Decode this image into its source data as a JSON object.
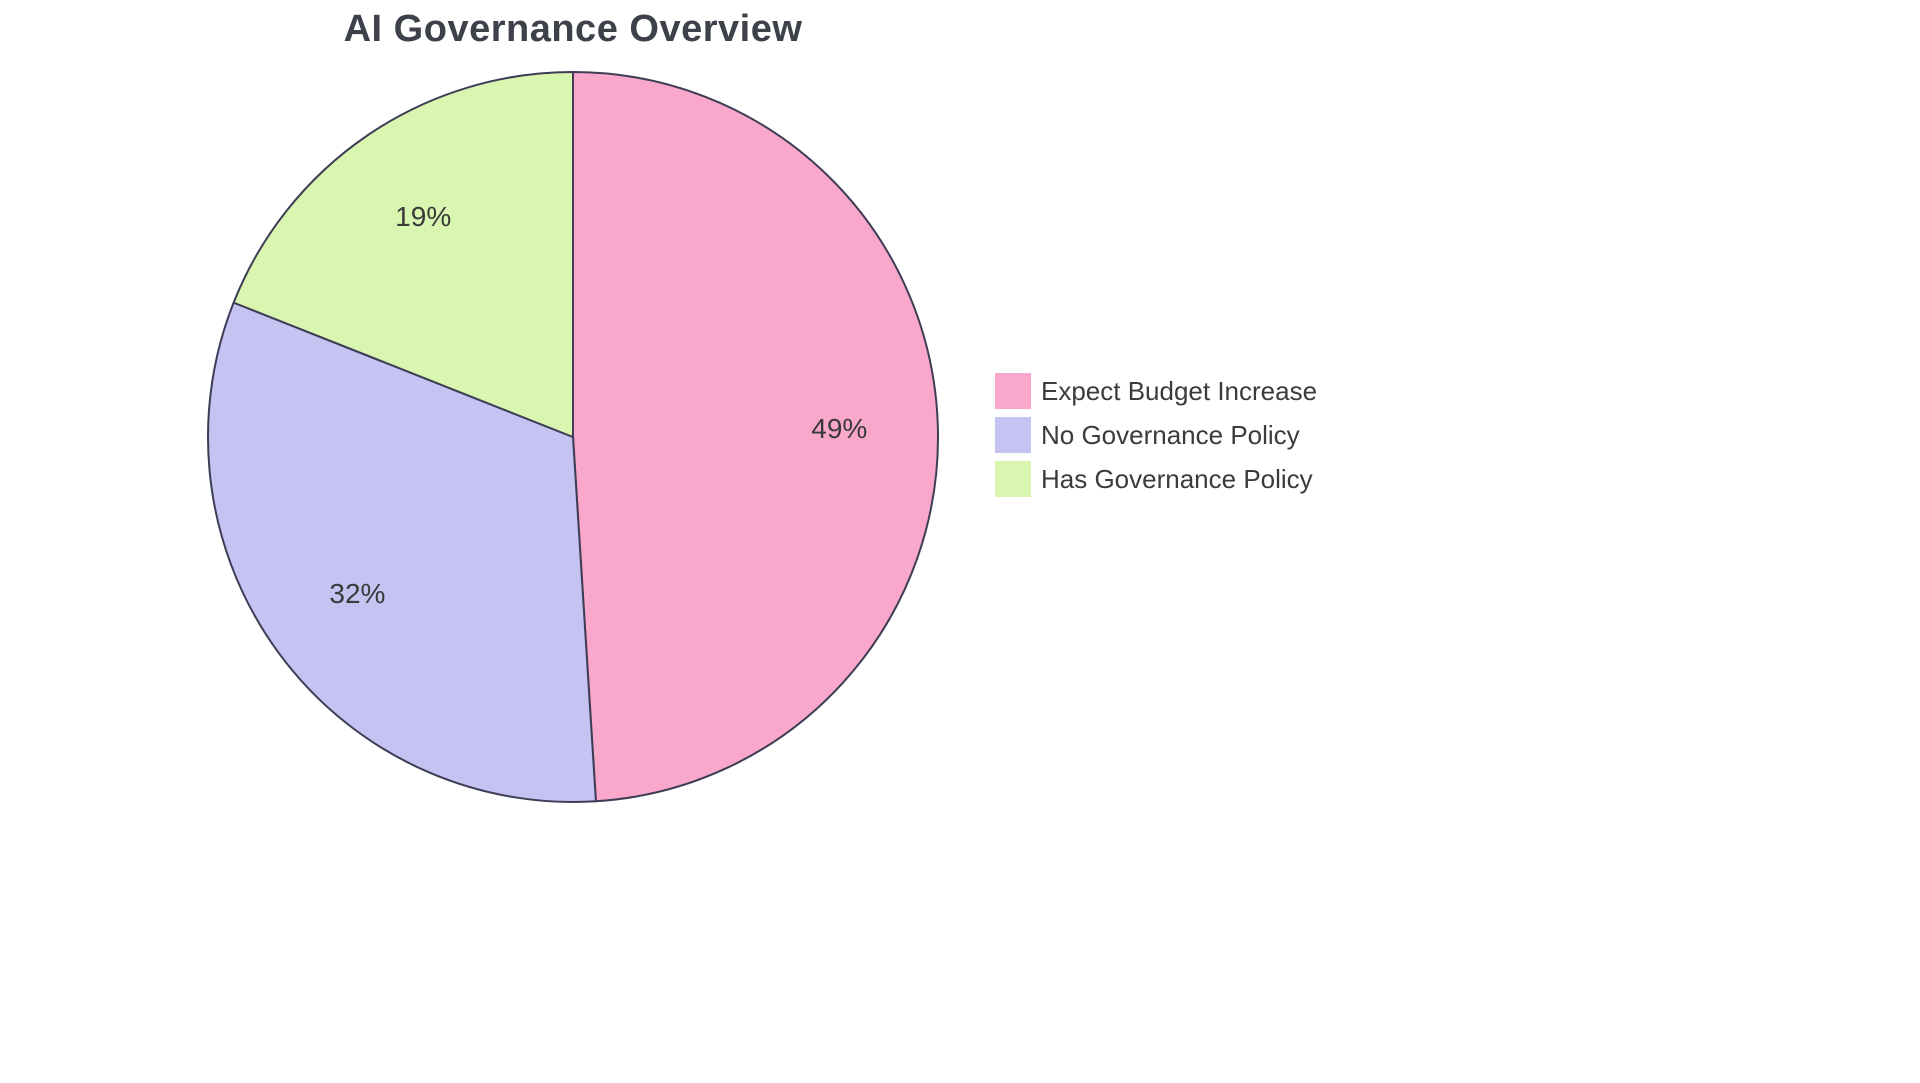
{
  "chart_data": {
    "type": "pie",
    "title": "AI Governance Overview",
    "categories": [
      "Expect Budget Increase",
      "No Governance Policy",
      "Has Governance Policy"
    ],
    "values": [
      49,
      32,
      19
    ],
    "unit": "%",
    "colors": [
      "#F9A8CB",
      "#C5C3F2",
      "#D9F6B1"
    ],
    "outline_color": "#3F3D56",
    "start_angle_deg": 0,
    "direction": "clockwise",
    "legend_position": "right",
    "slice_labels": [
      "49%",
      "32%",
      "19%"
    ],
    "background": "#FFFFFF"
  }
}
